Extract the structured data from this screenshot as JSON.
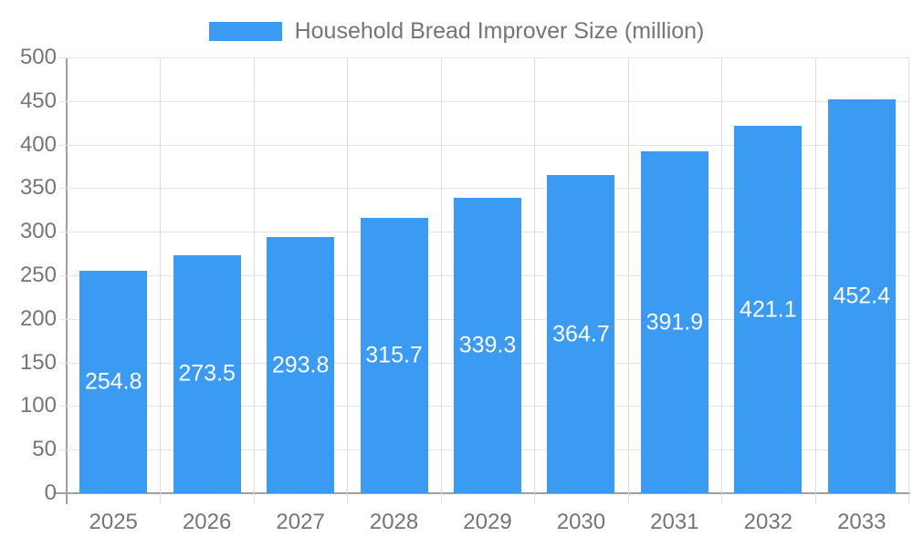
{
  "chart_data": {
    "type": "bar",
    "title": "Household Bread Improver Size (million)",
    "legend_entries": [
      "Household Bread Improver Size (million)"
    ],
    "legend_position": "top-center",
    "categories": [
      "2025",
      "2026",
      "2027",
      "2028",
      "2029",
      "2030",
      "2031",
      "2032",
      "2033"
    ],
    "series": [
      {
        "name": "Household Bread Improver Size (million)",
        "values": [
          254.8,
          273.5,
          293.8,
          315.7,
          339.3,
          364.7,
          391.9,
          421.1,
          452.4
        ]
      }
    ],
    "value_labels": [
      "254.8",
      "273.5",
      "293.8",
      "315.7",
      "339.3",
      "364.7",
      "391.9",
      "421.1",
      "452.4"
    ],
    "xlabel": "",
    "ylabel": "",
    "ylim": [
      0,
      500
    ],
    "ytick_step": 50,
    "yticks": [
      "0",
      "50",
      "100",
      "150",
      "200",
      "250",
      "300",
      "350",
      "400",
      "450",
      "500"
    ],
    "grid": true,
    "colors": {
      "bar": "#3b9af2",
      "value_label": "#ffffff",
      "axis_text": "#757575",
      "axis_line": "#a0a0a0",
      "grid_h": "#e3e3e3",
      "grid_v": "#dcdcdc",
      "background": "#ffffff"
    }
  }
}
